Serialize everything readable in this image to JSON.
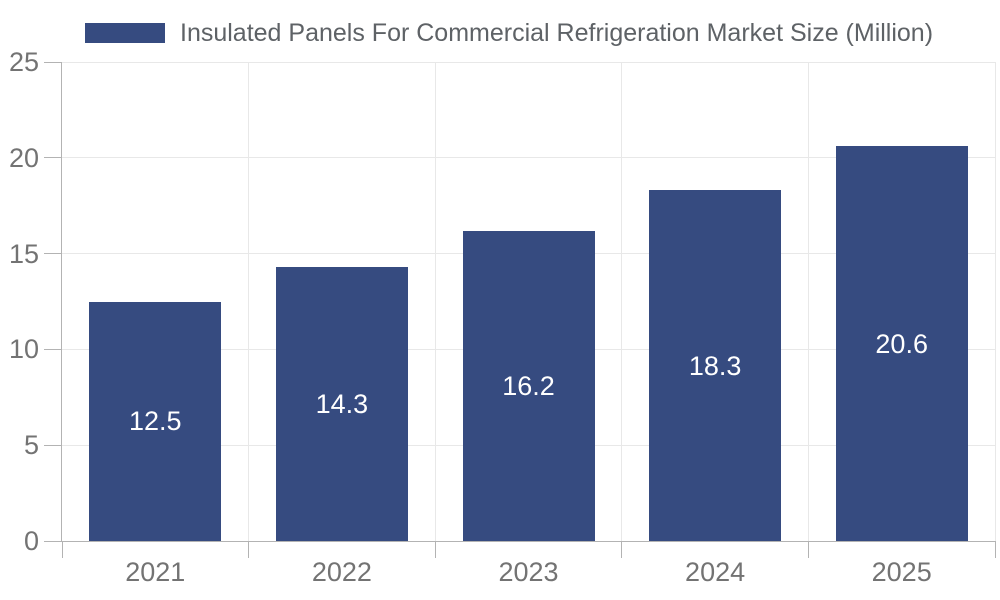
{
  "chart_data": {
    "type": "bar",
    "title": "Insulated Panels For Commercial Refrigeration Market Size (Million)",
    "categories": [
      "2021",
      "2022",
      "2023",
      "2024",
      "2025"
    ],
    "values": [
      12.5,
      14.3,
      16.2,
      18.3,
      20.6
    ],
    "value_labels": [
      "12.5",
      "14.3",
      "16.2",
      "18.3",
      "20.6"
    ],
    "xlabel": "",
    "ylabel": "",
    "ylim": [
      0,
      25
    ],
    "yticks": [
      0,
      5,
      10,
      15,
      20,
      25
    ],
    "grid": true,
    "legend_position": "top-left",
    "colors": {
      "bar": "#364B80",
      "grid_line": "#e8e8e8",
      "axis_line": "#b3b3b3",
      "tick_label": "#737373",
      "legend_text": "#5e6266",
      "value_label": "#ffffff",
      "background": "#ffffff"
    }
  }
}
